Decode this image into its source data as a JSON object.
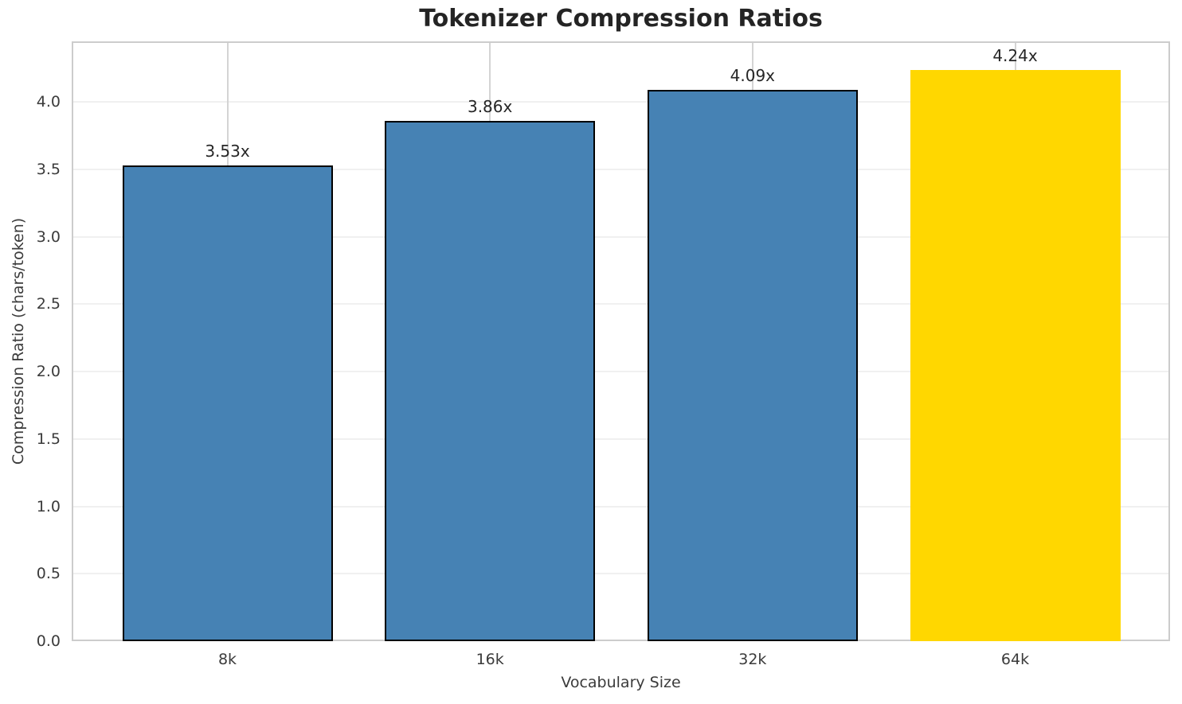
{
  "chart_data": {
    "type": "bar",
    "title": "Tokenizer Compression Ratios",
    "xlabel": "Vocabulary Size",
    "ylabel": "Compression Ratio (chars/token)",
    "categories": [
      "8k",
      "16k",
      "32k",
      "64k"
    ],
    "values": [
      3.53,
      3.86,
      4.09,
      4.24
    ],
    "bar_labels": [
      "3.53x",
      "3.86x",
      "4.09x",
      "4.24x"
    ],
    "ylim": [
      0,
      4.45
    ],
    "yticks": [
      0.0,
      0.5,
      1.0,
      1.5,
      2.0,
      2.5,
      3.0,
      3.5,
      4.0
    ],
    "ytick_labels": [
      "0.0",
      "0.5",
      "1.0",
      "1.5",
      "2.0",
      "2.5",
      "3.0",
      "3.5",
      "4.0"
    ],
    "grid": "both",
    "legend": false,
    "colors": {
      "bars": [
        "#4682B4",
        "#4682B4",
        "#4682B4",
        "#FFD700"
      ],
      "bar_edges": [
        "#000000",
        "#000000",
        "#000000",
        "none"
      ],
      "highlight": "#FFD700",
      "grid_horizontal": "#f0f0f0",
      "grid_vertical": "#d4d4d4",
      "spine": "#cccccc",
      "text": "#262626",
      "background": "#ffffff"
    }
  }
}
